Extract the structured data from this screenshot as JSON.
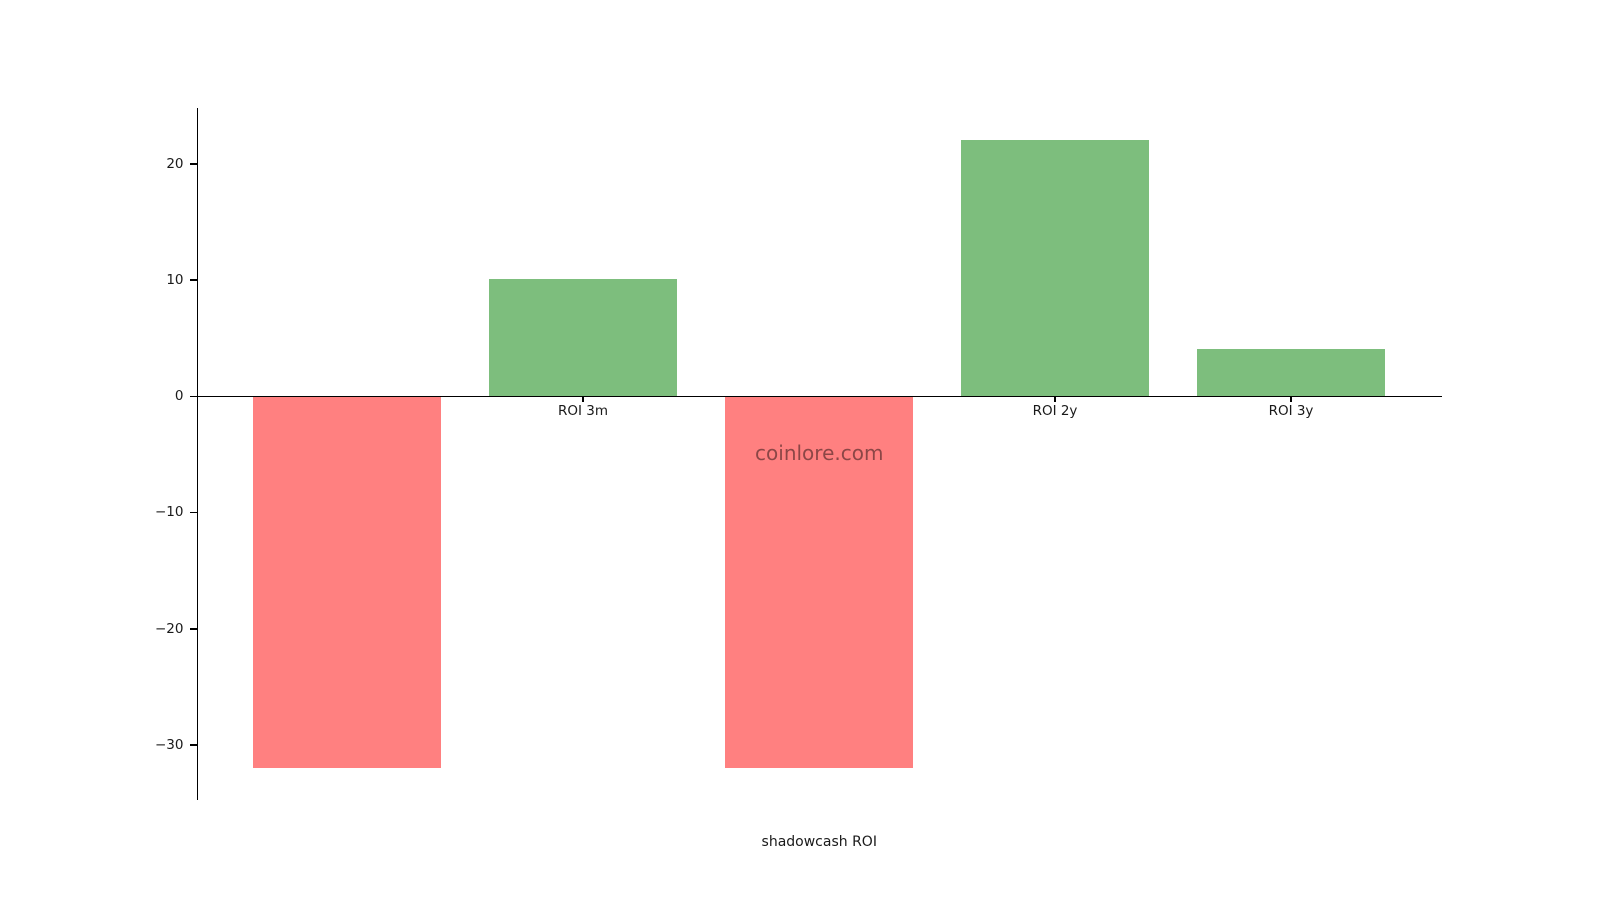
{
  "figure": {
    "background": "#ffffff",
    "watermark": "coinlore.com",
    "xlabel": "shadowcash ROI"
  },
  "chart_data": {
    "type": "bar",
    "title": "",
    "xlabel": "shadowcash ROI",
    "ylabel": "",
    "categories": [
      "",
      "ROI 3m",
      "",
      "ROI 2y",
      "ROI 3y"
    ],
    "values": [
      -32,
      10,
      -32,
      22,
      4
    ],
    "bar_colors": [
      "#ff8080",
      "#7dbe7d",
      "#ff8080",
      "#7dbe7d",
      "#7dbe7d"
    ],
    "positive_color": "#7dbe7d",
    "negative_color": "#ff8080",
    "y_ticks": [
      {
        "label": "20",
        "value": 20
      },
      {
        "label": "10",
        "value": 10
      },
      {
        "label": "0",
        "value": 0
      },
      {
        "label": "−10",
        "value": -10
      },
      {
        "label": "−20",
        "value": -20
      },
      {
        "label": "−30",
        "value": -30
      }
    ],
    "ylim": [
      -35,
      25
    ],
    "grid": false,
    "legend": "none",
    "axis_color": "#000000",
    "watermark": "coinlore.com",
    "note_hidden_labels": "tick labels of the two negative (red) bars are covered by the bars and not visible"
  }
}
